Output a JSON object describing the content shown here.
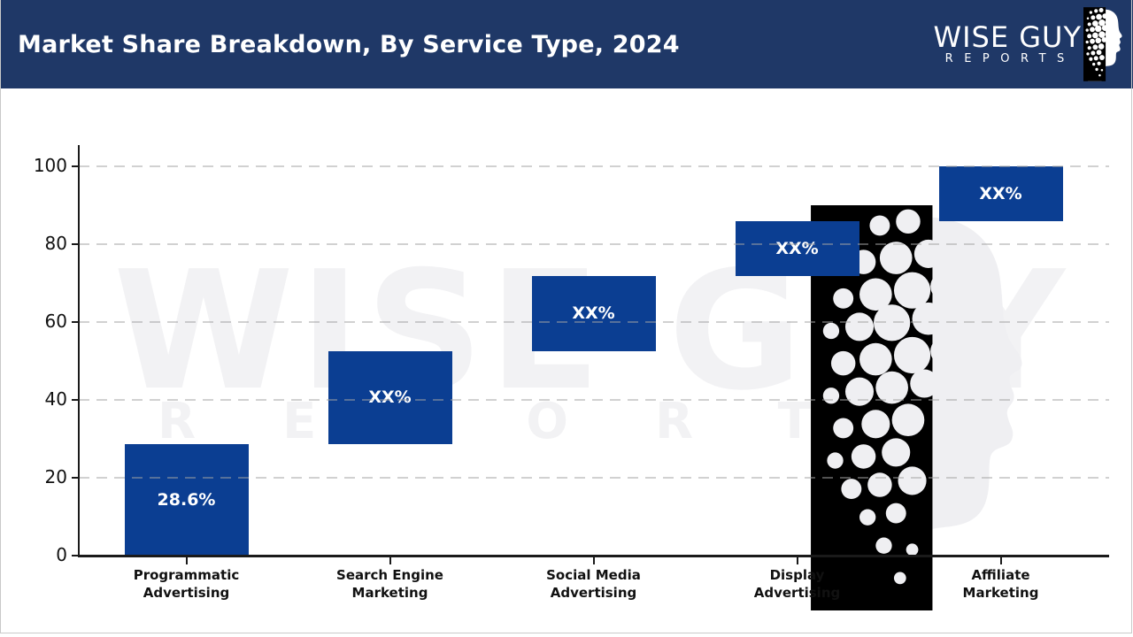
{
  "header": {
    "title": "Market Share Breakdown, By Service Type, 2024",
    "logo": {
      "line1": "WISE GUY",
      "line2": "REPORTS"
    }
  },
  "watermark": {
    "line1": "WISE GUY",
    "line2": "REPORTS"
  },
  "chart_data": {
    "type": "bar",
    "subtype": "waterfall",
    "title": "Market Share Breakdown, By Service Type, 2024",
    "categories": [
      "Programmatic Advertising",
      "Search Engine Marketing",
      "Social Media Advertising",
      "Display Advertising",
      "Affiliate Marketing"
    ],
    "category_lines": [
      [
        "Programmatic",
        "Advertising"
      ],
      [
        "Search Engine",
        "Marketing"
      ],
      [
        "Social Media",
        "Advertising"
      ],
      [
        "Display",
        "Advertising"
      ],
      [
        "Affiliate",
        "Marketing"
      ]
    ],
    "segments": [
      {
        "start": 0,
        "end": 28.6,
        "value": 28.6,
        "label": "28.6%"
      },
      {
        "start": 28.6,
        "end": 52.6,
        "value": 24.0,
        "label": "XX%"
      },
      {
        "start": 52.6,
        "end": 71.9,
        "value": 19.3,
        "label": "XX%"
      },
      {
        "start": 71.9,
        "end": 86.0,
        "value": 14.1,
        "label": "XX%"
      },
      {
        "start": 86.0,
        "end": 100.0,
        "value": 14.0,
        "label": "XX%"
      }
    ],
    "y_ticks": [
      0,
      20,
      40,
      60,
      80,
      100
    ],
    "ylim": [
      0,
      105
    ],
    "xlabel": "",
    "ylabel": "",
    "legend": "none",
    "grid": "horizontal dashed, drawn above bars",
    "bar_color": "#0b3e92",
    "header_color": "#1f3867",
    "axis_color": "#1a1a1a"
  }
}
